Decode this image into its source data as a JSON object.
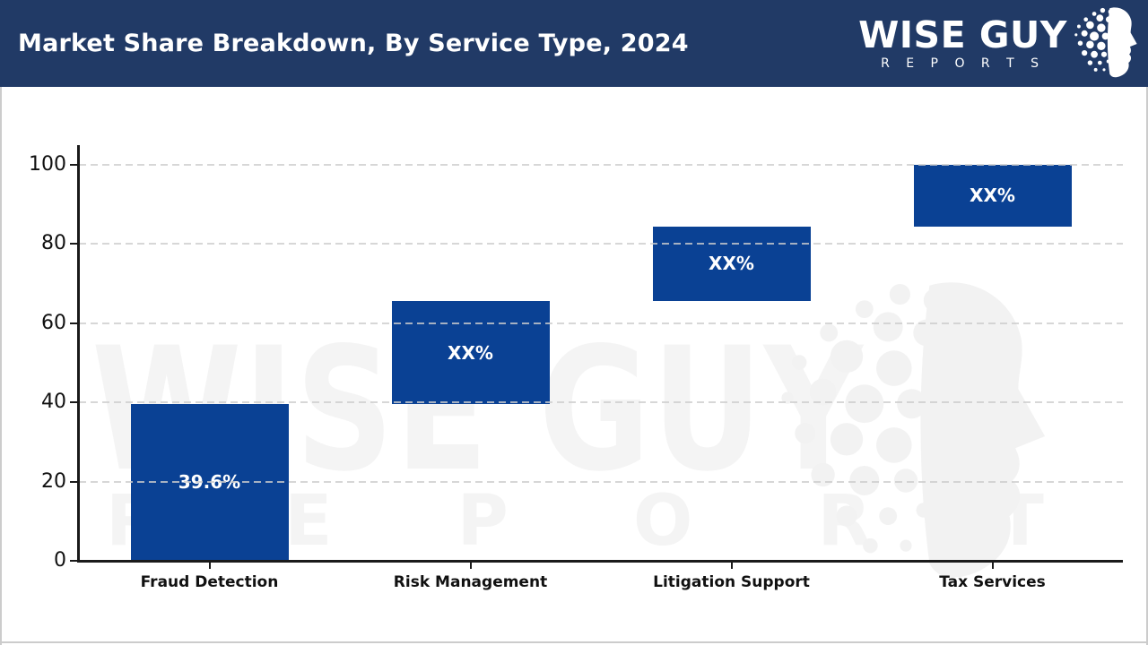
{
  "header": {
    "title": "Market Share Breakdown, By Service Type, 2024",
    "logo": {
      "line1": "WISE GUY",
      "line2": "R E P O R T S"
    }
  },
  "watermark": {
    "line1": "WISE GUY",
    "line2": "R E P O R T S"
  },
  "colors": {
    "header_bg": "#213a66",
    "bar": "#0a4194",
    "bar_label": "#ffffff",
    "grid": "#d0d0d0",
    "axis": "#1a1a1a",
    "watermark": "#f4f4f4",
    "edge": "#cccccc"
  },
  "chart_data": {
    "type": "bar",
    "subtype": "waterfall",
    "title": "Market Share Breakdown, By Service Type, 2024",
    "categories": [
      "Fraud Detection",
      "Risk Management",
      "Litigation Support",
      "Tax Services"
    ],
    "segments": [
      {
        "category": "Fraud Detection",
        "start": 0,
        "end": 39.6,
        "value": 39.6,
        "label": "39.6%"
      },
      {
        "category": "Risk Management",
        "start": 39.6,
        "end": 65.6,
        "value": 26.0,
        "label": "XX%"
      },
      {
        "category": "Litigation Support",
        "start": 65.6,
        "end": 84.4,
        "value": 18.8,
        "label": "XX%"
      },
      {
        "category": "Tax Services",
        "start": 84.4,
        "end": 100,
        "value": 15.6,
        "label": "XX%"
      }
    ],
    "xlabel": "",
    "ylabel": "",
    "ylim": [
      0,
      100
    ],
    "yticks": [
      0,
      20,
      40,
      60,
      80,
      100
    ],
    "grid": "horizontal-dashed-above-bars",
    "legend": "none",
    "bar_color": "#0a4194",
    "label_color": "#ffffff"
  }
}
